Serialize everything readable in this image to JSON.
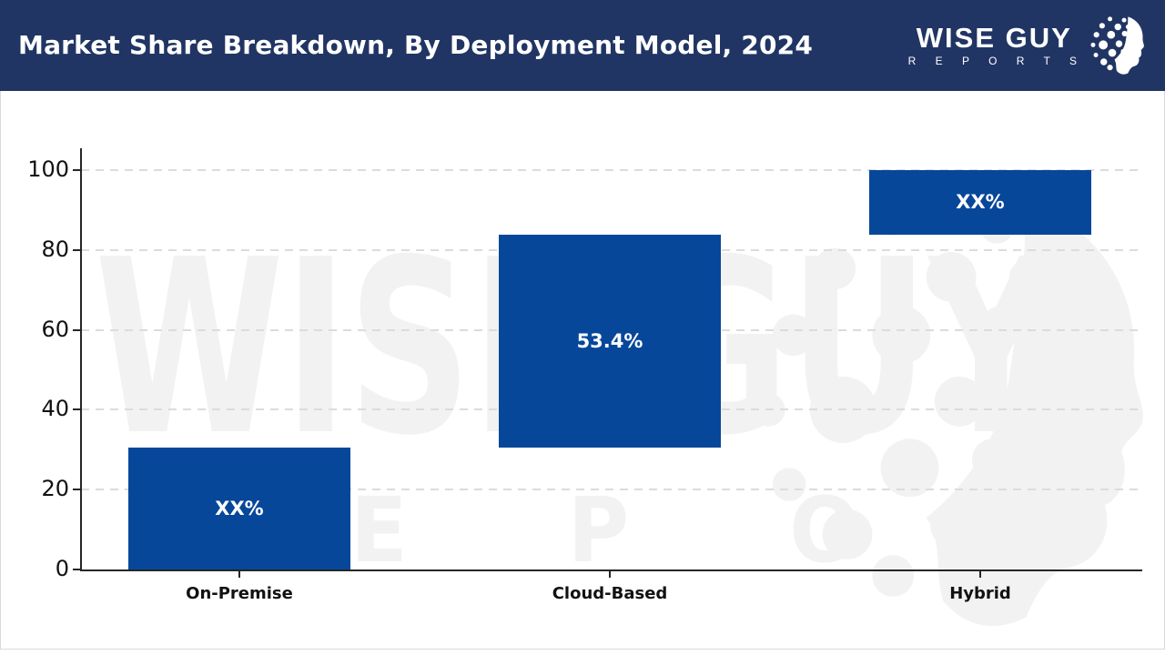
{
  "header": {
    "title": "Market Share Breakdown, By Deployment Model, 2024",
    "bg_color": "#213564",
    "logo": {
      "wordmark": "WISE GUY",
      "subtitle": "R E P O R T S",
      "face_icon": "dotted-head-profile-icon"
    }
  },
  "watermark": {
    "line1": "WISE GUY",
    "line2": "R E P O R T S",
    "color": "#f2f2f2"
  },
  "chart_data": {
    "type": "bar",
    "variant": "floating-segment-bars",
    "title": "Market Share Breakdown, By Deployment Model, 2024",
    "categories": [
      "On-Premise",
      "Cloud-Based",
      "Hybrid"
    ],
    "segments": [
      {
        "category": "On-Premise",
        "start": 0,
        "end": 30.5,
        "label": "XX%",
        "value": null
      },
      {
        "category": "Cloud-Based",
        "start": 30.5,
        "end": 83.9,
        "label": "53.4%",
        "value": 53.4
      },
      {
        "category": "Hybrid",
        "start": 83.9,
        "end": 100,
        "label": "XX%",
        "value": null
      }
    ],
    "yticks": [
      0,
      20,
      40,
      60,
      80,
      100
    ],
    "ylim": [
      0,
      100
    ],
    "xlabel": "",
    "ylabel": "",
    "grid": "horizontal-dashed",
    "grid_color": "#dcdcdc",
    "bar_color": "#07479a",
    "bar_label_color": "#ffffff",
    "axis_color": "#262626",
    "legend": "none"
  }
}
